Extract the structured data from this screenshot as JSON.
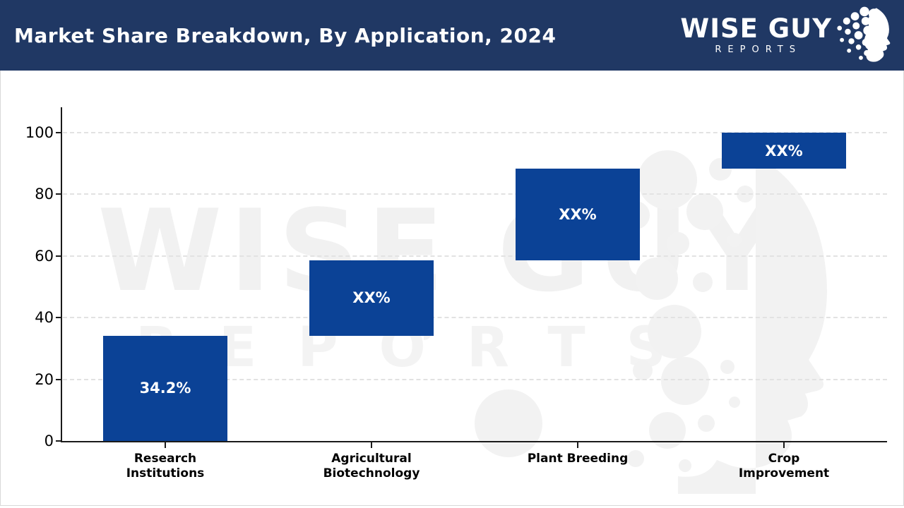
{
  "header": {
    "title": "Market Share Breakdown, By Application, 2024",
    "logo": {
      "line1": "WISE GUY",
      "line2": "REPORTS"
    }
  },
  "watermark": {
    "line1": "WISE GUY",
    "line2": "REPORTS"
  },
  "chart_data": {
    "type": "bar",
    "subtype": "waterfall",
    "title": "Market Share Breakdown, By Application, 2024",
    "categories": [
      "Research Institutions",
      "Agricultural Biotechnology",
      "Plant Breeding",
      "Crop Improvement"
    ],
    "segments": [
      {
        "category": "Research Institutions",
        "start": 0,
        "end": 34.2,
        "label": "34.2%"
      },
      {
        "category": "Agricultural Biotechnology",
        "start": 34.2,
        "end": 58.6,
        "label": "XX%"
      },
      {
        "category": "Plant Breeding",
        "start": 58.6,
        "end": 88.3,
        "label": "XX%"
      },
      {
        "category": "Crop Improvement",
        "start": 88.3,
        "end": 100,
        "label": "XX%"
      }
    ],
    "ylim": [
      0,
      105
    ],
    "yticks": [
      0,
      20,
      40,
      60,
      80,
      100
    ],
    "xlabel": "",
    "ylabel": "",
    "grid": "horizontal-dashed",
    "legend": "none"
  },
  "colors": {
    "header_bg": "#203864",
    "bar": "#0b4296",
    "bar_label": "#ffffff",
    "grid": "#e2e2e2",
    "axis": "#1a1a1a",
    "watermark": "#f1f1f1",
    "frame_border": "#d9d9d9"
  }
}
